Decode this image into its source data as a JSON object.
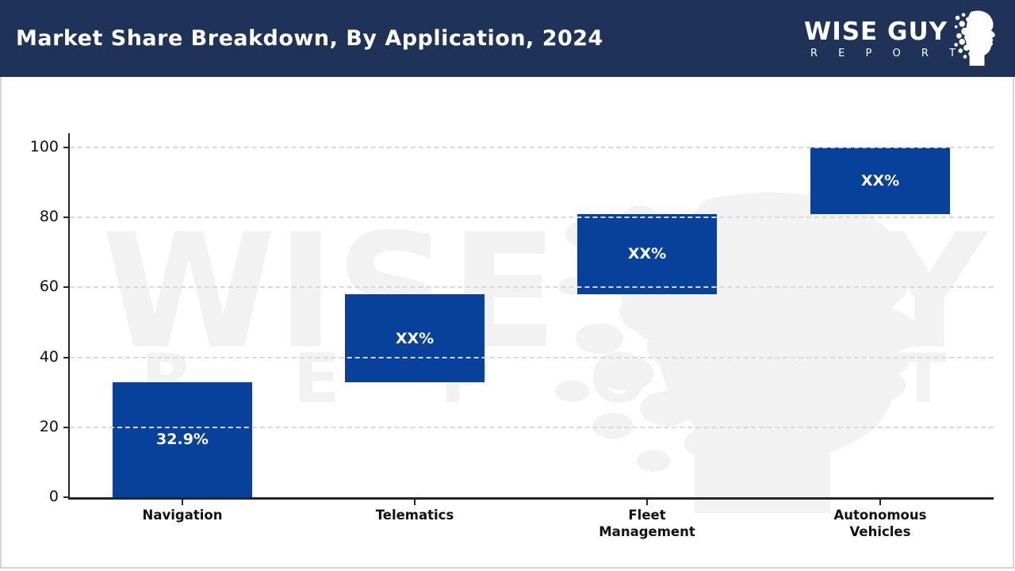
{
  "header": {
    "title": "Market Share Breakdown, By Application, 2024",
    "logo": {
      "line1": "WISE GUY",
      "line2": "R E P O R T S"
    }
  },
  "watermark": {
    "line1": "WISE GUY",
    "line2": "R E P O R T S"
  },
  "colors": {
    "header_bg": "#1f3358",
    "bar": "#07419c",
    "bar_label": "#ffffff",
    "gridline": "#d9d9d9",
    "axis": "#262626",
    "watermark": "#f2f2f2"
  },
  "chart_data": {
    "type": "bar",
    "subtype": "waterfall",
    "title": "Market Share Breakdown, By Application, 2024",
    "categories": [
      "Navigation",
      "Telematics",
      "Fleet Management",
      "Autonomous Vehicles"
    ],
    "bars": [
      {
        "category": "Navigation",
        "start": 0,
        "end": 32.9,
        "label": "32.9%"
      },
      {
        "category": "Telematics",
        "start": 32.9,
        "end": 58,
        "label": "XX%"
      },
      {
        "category": "Fleet Management",
        "start": 58,
        "end": 81,
        "label": "XX%"
      },
      {
        "category": "Autonomous Vehicles",
        "start": 81,
        "end": 100,
        "label": "XX%"
      }
    ],
    "ylim": [
      0,
      100
    ],
    "yticks": [
      0,
      20,
      40,
      60,
      80,
      100
    ],
    "xlabel": "",
    "ylabel": "",
    "grid": "horizontal-dashed",
    "legend": "none"
  }
}
